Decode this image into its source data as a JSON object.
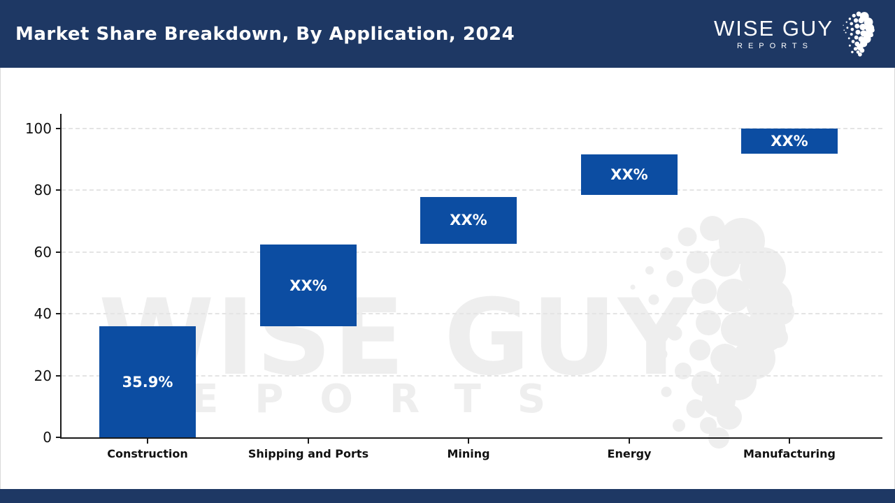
{
  "header": {
    "title": "Market Share Breakdown, By Application, 2024",
    "logo": {
      "line1": "WISE GUY",
      "line2": "REPORTS"
    }
  },
  "watermark": {
    "line1": "WISE GUY",
    "line2": "REPORTS"
  },
  "colors": {
    "header_bg": "#1e3864",
    "footer_bg": "#1e3864",
    "bar": "#0c4da2",
    "bar_label": "#ffffff",
    "axis": "#1a1a1a",
    "grid": "#e4e4e4",
    "tick_label": "#111111",
    "watermark": "#eeeeee",
    "title_text": "#ffffff"
  },
  "chart_data": {
    "type": "bar",
    "subtype": "floating-waterfall",
    "title": "Market Share Breakdown, By Application, 2024",
    "xlabel": "",
    "ylabel": "",
    "categories": [
      "Construction",
      "Shipping and Ports",
      "Mining",
      "Energy",
      "Manufacturing"
    ],
    "bars": [
      {
        "category": "Construction",
        "start": 0,
        "end": 35.9,
        "label": "35.9%"
      },
      {
        "category": "Shipping and Ports",
        "start": 35.9,
        "end": 62.4,
        "label": "XX%"
      },
      {
        "category": "Mining",
        "start": 62.7,
        "end": 77.8,
        "label": "XX%"
      },
      {
        "category": "Energy",
        "start": 78.4,
        "end": 91.5,
        "label": "XX%"
      },
      {
        "category": "Manufacturing",
        "start": 91.8,
        "end": 99.8,
        "label": "XX%"
      }
    ],
    "y_ticks": [
      0,
      20,
      40,
      60,
      80,
      100
    ],
    "ylim": [
      0,
      104
    ],
    "grid": "horizontal-dashed",
    "legend": "none"
  }
}
